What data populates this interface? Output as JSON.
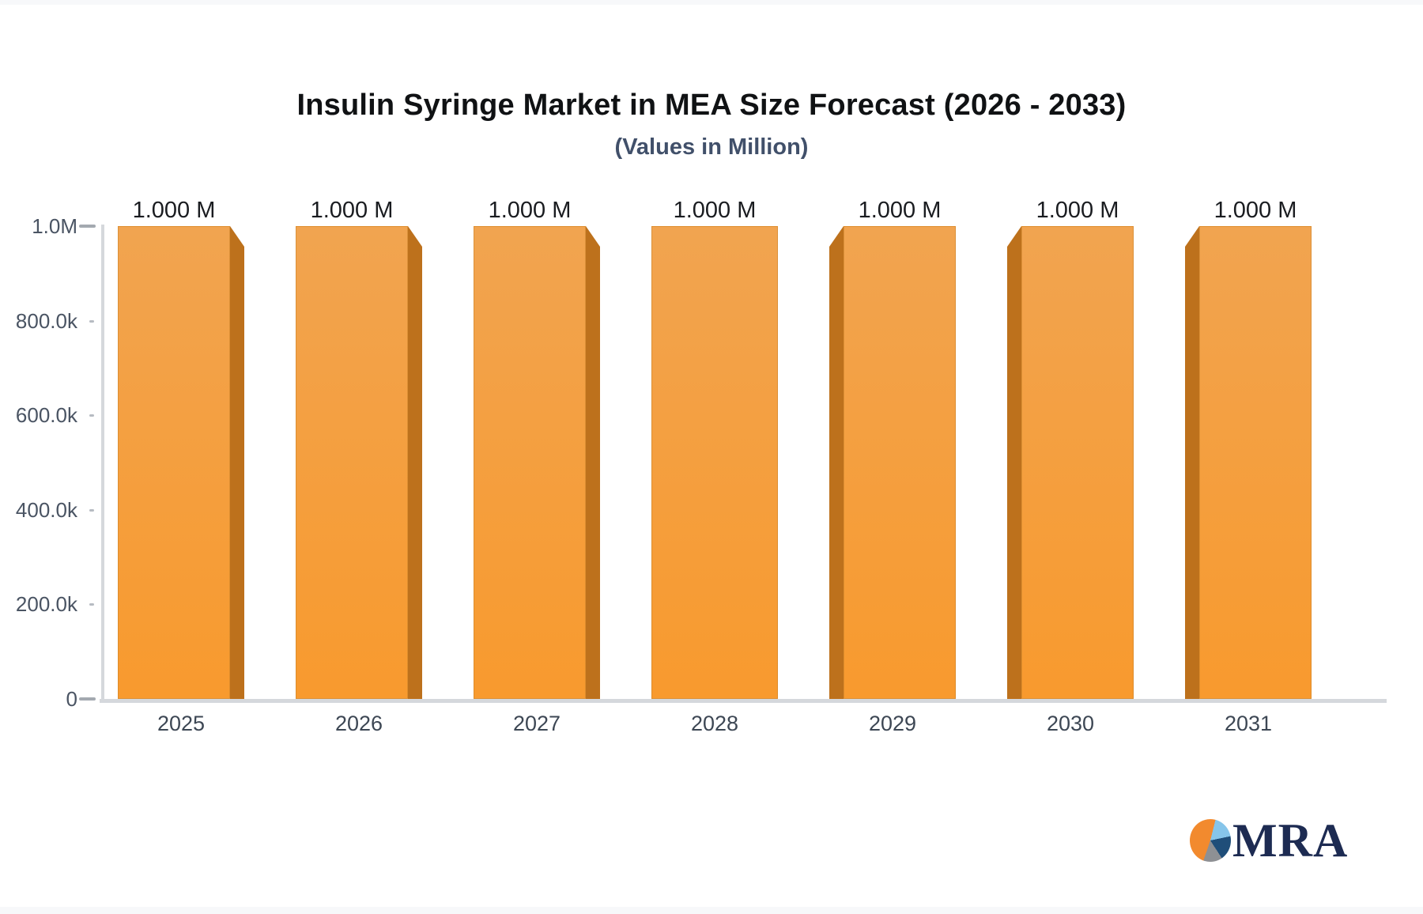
{
  "header": {
    "title": "Insulin Syringe Market in MEA Size Forecast (2026 - 2033)",
    "subtitle": "(Values in Million)"
  },
  "chart_data": {
    "type": "bar",
    "categories": [
      "2025",
      "2026",
      "2027",
      "2028",
      "2029",
      "2030",
      "2031"
    ],
    "values": [
      1000000,
      1000000,
      1000000,
      1000000,
      1000000,
      1000000,
      1000000
    ],
    "value_labels": [
      "1.000 M",
      "1.000 M",
      "1.000 M",
      "1.000 M",
      "1.000 M",
      "1.000 M",
      "1.000 M"
    ],
    "title": "Insulin Syringe Market in MEA Size Forecast (2026 - 2033)",
    "subtitle": "(Values in Million)",
    "xlabel": "",
    "ylabel": "",
    "ylim": [
      0,
      1000000
    ],
    "y_ticks": [
      {
        "value": 0,
        "label": "0",
        "major": true
      },
      {
        "value": 200000,
        "label": "200.0k",
        "major": false
      },
      {
        "value": 400000,
        "label": "400.0k",
        "major": false
      },
      {
        "value": 600000,
        "label": "600.0k",
        "major": false
      },
      {
        "value": 800000,
        "label": "800.0k",
        "major": false
      },
      {
        "value": 1000000,
        "label": "1.0M",
        "major": true
      }
    ],
    "grid": false,
    "legend": "none",
    "style": "3d-bars",
    "colors": {
      "bar_face_top": "#f1a450",
      "bar_face_bottom": "#f89a2e",
      "bar_side": "#bd711c",
      "axis_line": "#d5d8dc",
      "tick_label": "#4a5463",
      "category_label": "#3d4754",
      "value_label": "#1a1c20"
    }
  },
  "logo": {
    "text": "MRA",
    "pie_icon_colors": {
      "orange": "#f28a2e",
      "light_blue": "#86c5ea",
      "navy": "#1f4e79",
      "gray": "#8e9094"
    }
  }
}
